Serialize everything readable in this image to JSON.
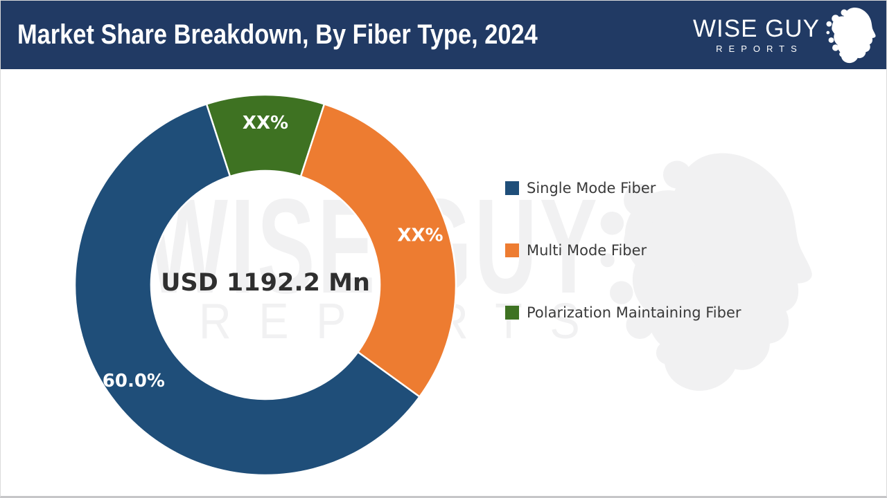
{
  "header": {
    "title": "Market Share Breakdown, By Fiber Type, 2024",
    "logo_line1": "WISE GUY",
    "logo_line2": "REPORTS"
  },
  "watermark": {
    "line1": "WISE GUY",
    "line2": "REPORTS"
  },
  "chart_data": {
    "type": "pie",
    "subtype": "donut",
    "title": "Market Share Breakdown, By Fiber Type, 2024",
    "center_label": "USD 1192.2 Mn",
    "units": "percent market share",
    "series": [
      {
        "name": "Single Mode Fiber",
        "value": 60,
        "label": "60.0%",
        "color": "#1F4E79"
      },
      {
        "name": "Multi Mode Fiber",
        "value": 30,
        "label": "XX%",
        "color": "#ED7C31"
      },
      {
        "name": "Polarization Maintaining Fiber",
        "value": 10,
        "label": "XX%",
        "color": "#3E7222"
      }
    ],
    "start_angle_deg": -18,
    "direction": "clockwise",
    "inner_radius_ratio": 0.6,
    "labels_inside": true,
    "legend_position": "right"
  },
  "colors": {
    "header_bg": "#213A64",
    "slice_label_text": "#FFFFFF",
    "center_text": "#2F2F2F",
    "legend_text": "#3A3A3A",
    "watermark": "#F1F1F2",
    "bottom_border": "#C6C6C8"
  }
}
